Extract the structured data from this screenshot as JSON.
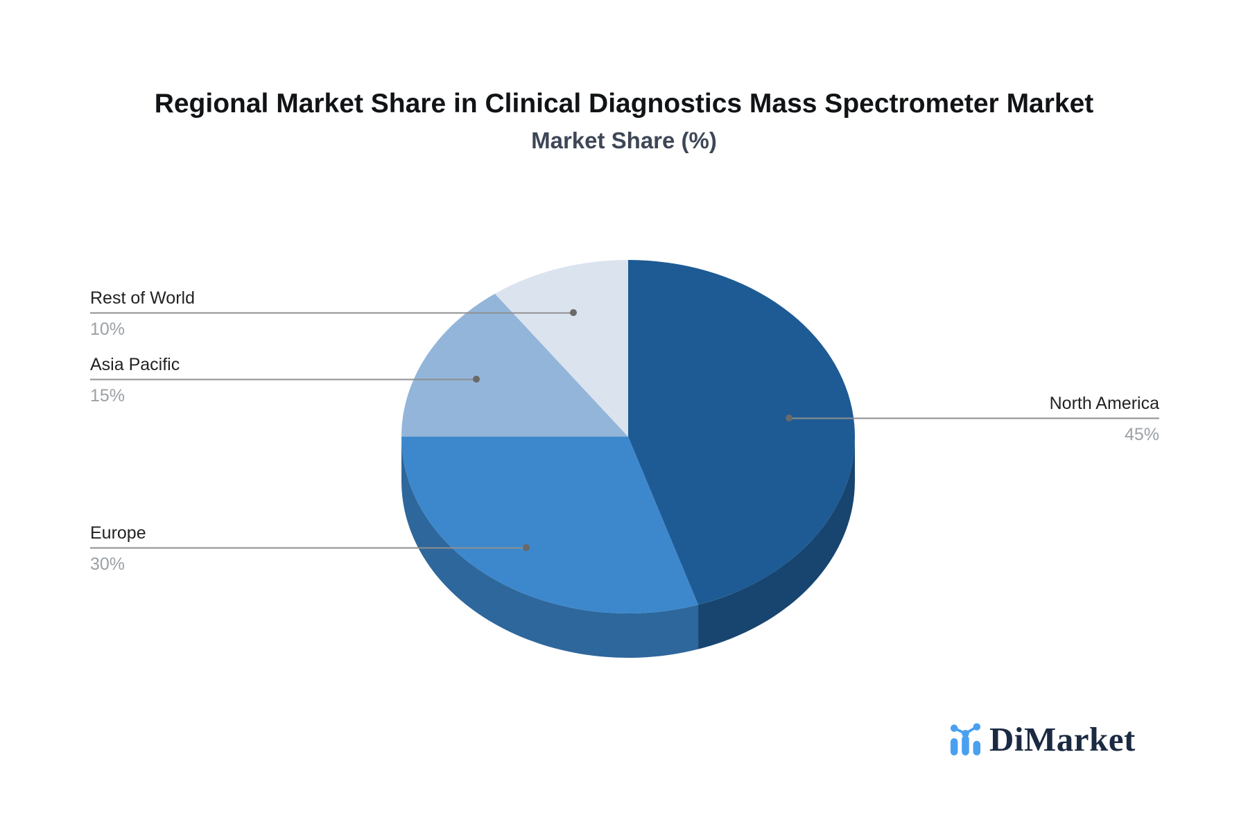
{
  "header": {
    "title": "Regional Market Share in Clinical Diagnostics Mass Spectrometer Market",
    "subtitle": "Market Share (%)"
  },
  "branding": {
    "name": "DiMarket",
    "icon": "bar-line-chart-icon",
    "icon_color": "#4aa0f0",
    "text_color": "#1b2a42"
  },
  "chart_data": {
    "type": "pie",
    "style": "3d",
    "title": "Regional Market Share in Clinical Diagnostics Mass Spectrometer Market",
    "subtitle": "Market Share (%)",
    "unit": "%",
    "direction": "clockwise",
    "start_angle_deg": 0,
    "legend_position": "none",
    "background": "#ffffff",
    "slices": [
      {
        "label": "North America",
        "value": 45,
        "display": "45%",
        "color": "#1e5b94"
      },
      {
        "label": "Europe",
        "value": 30,
        "display": "30%",
        "color": "#3d88cc"
      },
      {
        "label": "Asia Pacific",
        "value": 15,
        "display": "15%",
        "color": "#93b5d9"
      },
      {
        "label": "Rest of World",
        "value": 10,
        "display": "10%",
        "color": "#dbe3ef"
      }
    ],
    "label_line_color": "#8f8f8f",
    "label_dot_color": "#696969",
    "label_text_color": "#222222",
    "value_text_color": "#9aa0a6"
  }
}
